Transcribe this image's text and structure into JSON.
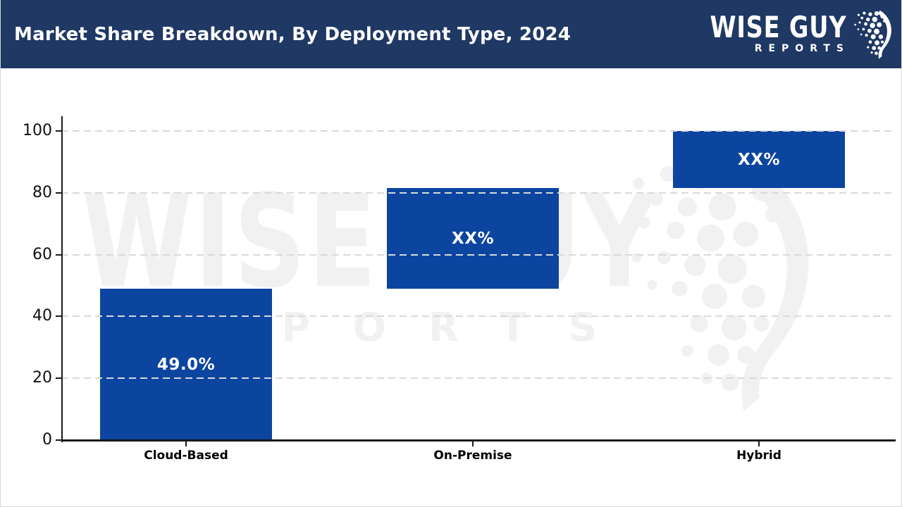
{
  "header": {
    "title": "Market Share Breakdown, By Deployment Type, 2024",
    "logo": {
      "wordmark": "WISE GUY",
      "subtext": "REPORTS"
    }
  },
  "watermark": {
    "wordmark": "WISE GUY",
    "subtext": "REPORTS"
  },
  "colors": {
    "header_bg": "#1f3864",
    "bar": "#0b45a0",
    "grid": "#d9d9d9",
    "axis": "#1a1a1a",
    "bar_label": "#ffffff",
    "watermark": "#f1f1f2"
  },
  "chart_data": {
    "type": "bar",
    "variant": "waterfall",
    "title": "Market Share Breakdown, By Deployment Type, 2024",
    "categories": [
      "Cloud-Based",
      "On-Premise",
      "Hybrid"
    ],
    "segments": [
      {
        "category": "Cloud-Based",
        "start": 0,
        "end": 49,
        "value": 49.0,
        "label": "49.0%"
      },
      {
        "category": "On-Premise",
        "start": 49,
        "end": 81.6,
        "value": 32.6,
        "label": "XX%"
      },
      {
        "category": "Hybrid",
        "start": 81.6,
        "end": 100,
        "value": 18.4,
        "label": "XX%"
      }
    ],
    "xlabel": "",
    "ylabel": "",
    "ylim": [
      0,
      100
    ],
    "yticks": [
      0,
      20,
      40,
      60,
      80,
      100
    ],
    "grid": "horizontal-dashed",
    "legend": "none"
  }
}
